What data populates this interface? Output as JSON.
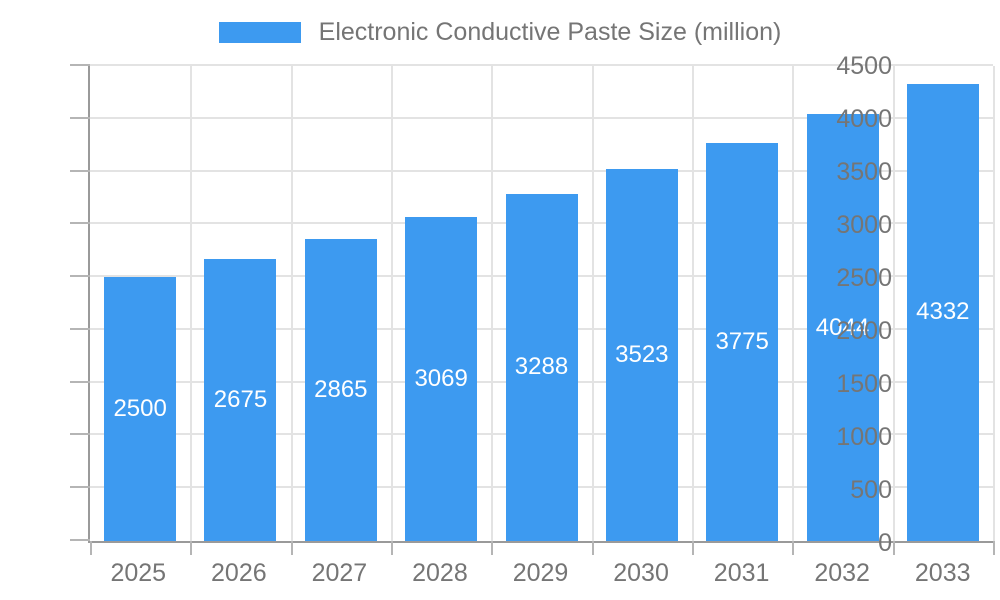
{
  "legend": {
    "label": "Electronic Conductive Paste Size (million)"
  },
  "colors": {
    "bar": "#3d9af0",
    "grid": "#e3e3e3",
    "axis_line": "#9a9a9a",
    "tick": "#b5b5b5",
    "axis_text": "#757575",
    "bar_label_text": "#ffffff",
    "background": "#ffffff"
  },
  "chart_data": {
    "type": "bar",
    "title": "Electronic Conductive Paste Size (million)",
    "categories": [
      "2025",
      "2026",
      "2027",
      "2028",
      "2029",
      "2030",
      "2031",
      "2032",
      "2033"
    ],
    "values": [
      2500,
      2675,
      2865,
      3069,
      3288,
      3523,
      3775,
      4044,
      4332
    ],
    "series_name": "Electronic Conductive Paste Size (million)",
    "xlabel": "",
    "ylabel": "",
    "ylim": [
      0,
      4500
    ],
    "yticks": [
      0,
      500,
      1000,
      1500,
      2000,
      2500,
      3000,
      3500,
      4000,
      4500
    ],
    "grid": true,
    "legend_position": "top",
    "bar_label_position": "inside-middle"
  }
}
